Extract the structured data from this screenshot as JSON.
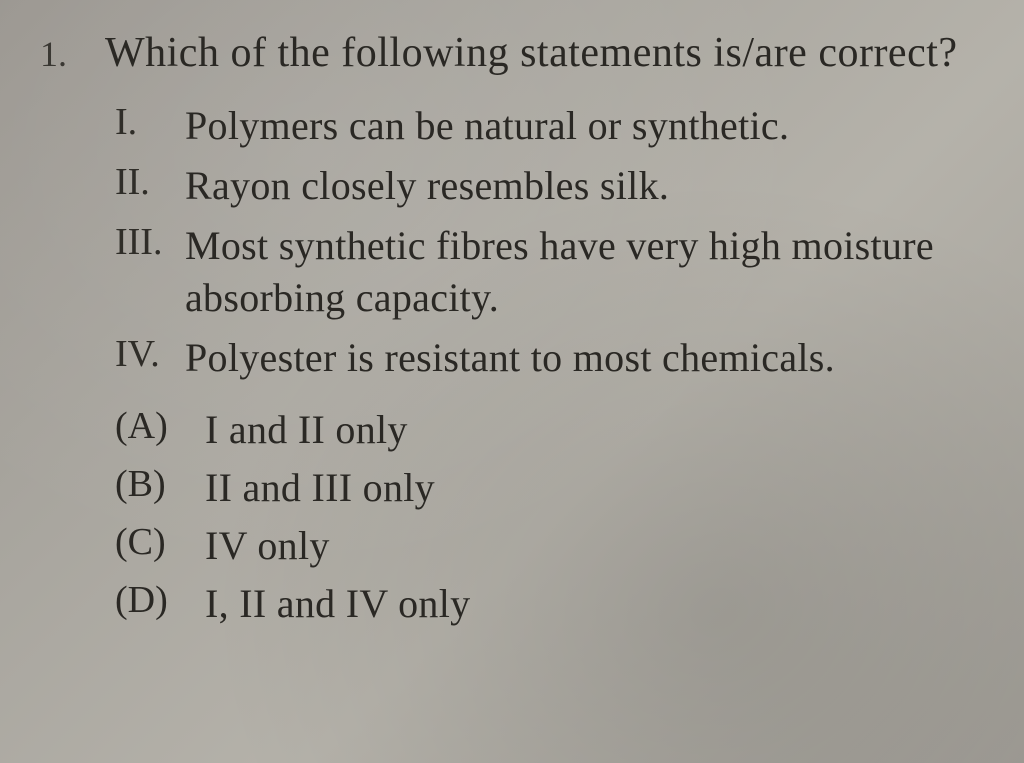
{
  "question": {
    "number": "1.",
    "text": "Which of the following statements is/are correct?"
  },
  "statements": [
    {
      "roman": "I.",
      "text": "Polymers can be natural or synthetic."
    },
    {
      "roman": "II.",
      "text": "Rayon closely resembles silk."
    },
    {
      "roman": "III.",
      "text": "Most synthetic fibres have very high moisture absorbing capacity."
    },
    {
      "roman": "IV.",
      "text": "Polyester is resistant to most chemicals."
    }
  ],
  "options": [
    {
      "letter": "(A)",
      "text": "I and II only"
    },
    {
      "letter": "(B)",
      "text": "II and III only"
    },
    {
      "letter": "(C)",
      "text": "IV only"
    },
    {
      "letter": "(D)",
      "text": "I, II and IV only"
    }
  ],
  "styling": {
    "background_gradient_start": "#9a9690",
    "background_gradient_end": "#a09d96",
    "text_color": "#2a2824",
    "question_fontsize": 42,
    "statement_fontsize": 40,
    "option_fontsize": 40,
    "font_family": "Georgia, Times New Roman, serif",
    "font_weight": 500
  }
}
